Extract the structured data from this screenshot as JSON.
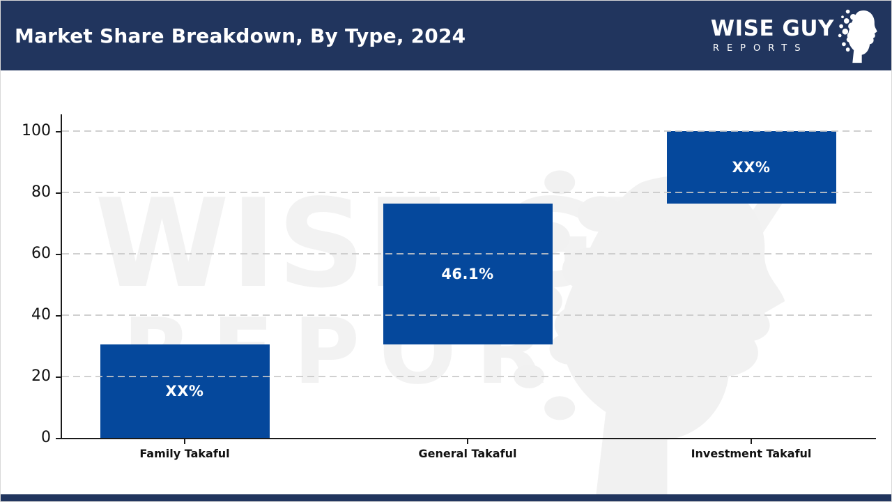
{
  "header": {
    "title": "Market Share Breakdown, By Type, 2024",
    "bg_color": "#21355e",
    "logo": {
      "line1": "WISE GUY",
      "line2": "REPORTS"
    }
  },
  "watermark": {
    "line1": "WISE GUY",
    "line2": "REPORTS"
  },
  "footer": {
    "bg_color": "#21355e"
  },
  "chart_data": {
    "type": "bar",
    "subtype": "floating-segment-bars",
    "title": "",
    "xlabel": "",
    "ylabel": "",
    "categories": [
      "Family Takaful",
      "General Takaful",
      "Investment Takaful"
    ],
    "segments": [
      {
        "category": "Family Takaful",
        "start": 0,
        "end": 30.4,
        "label": "XX%"
      },
      {
        "category": "General Takaful",
        "start": 30.4,
        "end": 76.5,
        "label": "46.1%"
      },
      {
        "category": "Investment Takaful",
        "start": 76.5,
        "end": 100,
        "label": "XX%"
      }
    ],
    "yticks": [
      0,
      20,
      40,
      60,
      80,
      100
    ],
    "ylim": [
      0,
      105.5
    ],
    "grid": true,
    "grid_style": "dashed",
    "grid_color": "#d9d9d9",
    "bar_color": "#05489c",
    "bar_label_color": "#ffffff",
    "axis_color": "#1a1a1a",
    "legend": "none"
  }
}
